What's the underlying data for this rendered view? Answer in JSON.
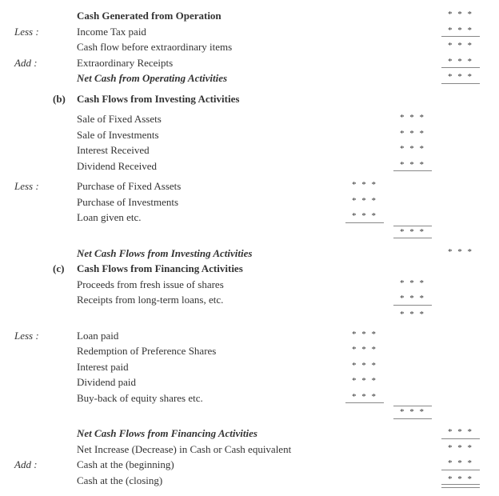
{
  "dots": "* * *",
  "labels": {
    "less": "Less :",
    "add": "Add :",
    "b": "(b)",
    "c": "(c)"
  },
  "lines": {
    "cashGenOp": "Cash Generated from Operation",
    "incomeTax": "Income Tax paid",
    "cfBeforeExtra": "Cash flow before extraordinary items",
    "extraReceipts": "Extraordinary Receipts",
    "netCashOp": "Net Cash from Operating Activities",
    "cfInvesting": "Cash Flows from Investing Activities",
    "saleFA": "Sale of Fixed Assets",
    "saleInv": "Sale of Investments",
    "intRec": "Interest Received",
    "divRec": "Dividend Received",
    "purchFA": "Purchase of Fixed Assets",
    "purchInv": "Purchase of Investments",
    "loanGiven": "Loan given etc.",
    "netCashInv": "Net Cash Flows from Investing Activities",
    "cfFinancing": "Cash Flows from Financing Activities",
    "freshIssue": "Proceeds from fresh issue of shares",
    "receiptsLT": "Receipts from long-term loans, etc.",
    "loanPaid": "Loan paid",
    "redemption": "Redemption of Preference Shares",
    "intPaid": "Interest paid",
    "divPaid": "Dividend paid",
    "buyback": "Buy-back of equity shares etc.",
    "netCashFin": "Net Cash Flows from Financing Activities",
    "netIncrease": "Net Increase (Decrease) in Cash or Cash equivalent",
    "cashBeg": "Cash at the (beginning)",
    "cashEnd": "Cash at the (closing)"
  }
}
